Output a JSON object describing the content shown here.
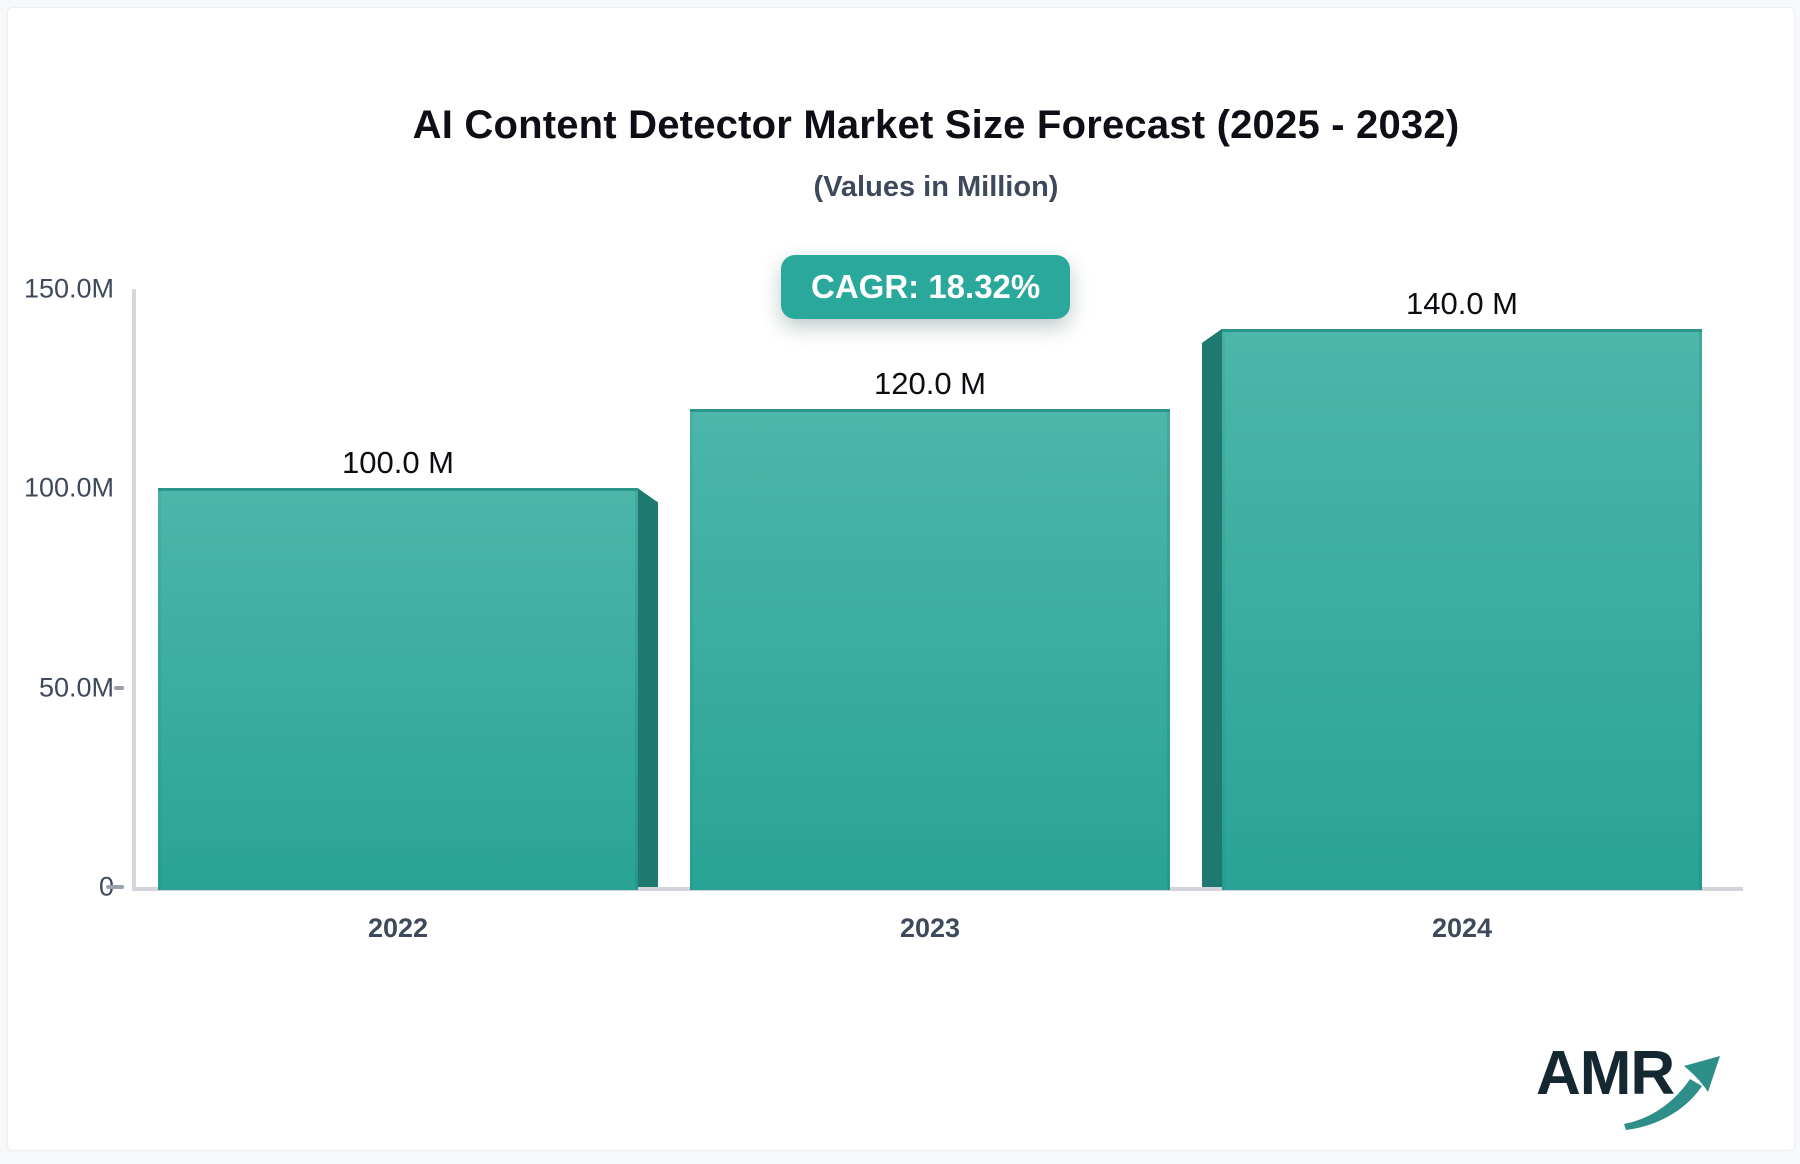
{
  "header": {
    "title": "AI Content Detector Market Size Forecast (2025 - 2032)",
    "subtitle": "(Values in Million)"
  },
  "badge": {
    "label": "CAGR: 18.32%",
    "color": "#2aa89c"
  },
  "chart_data": {
    "type": "bar",
    "title": "AI Content Detector Market Size Forecast (2025 - 2032)",
    "subtitle": "(Values in Million)",
    "categories": [
      "2022",
      "2023",
      "2024"
    ],
    "values": [
      100,
      120,
      140
    ],
    "bar_labels": [
      "100.0 M",
      "120.0 M",
      "140.0 M"
    ],
    "xlabel": "",
    "ylabel": "",
    "ylim": [
      0,
      150
    ],
    "y_ticks": [
      {
        "value": 150,
        "label": "150.0M"
      },
      {
        "value": 100,
        "label": "100.0M"
      },
      {
        "value": 50,
        "label": "50.0M"
      },
      {
        "value": 0,
        "label": "0"
      }
    ],
    "grid": false,
    "legend": "none",
    "annotations": [
      "CAGR: 18.32%"
    ],
    "colors": {
      "bar_gradient_top": "#4cb6ab",
      "bar_gradient_bottom": "#29a396",
      "bar_side_face": "#1e7a70",
      "bar_top_edge": "#2b958b",
      "axis_line": "#d5d7dd",
      "tick_text": "#3e4a5c",
      "value_text": "#0c0c12",
      "badge": "#2aa89c"
    }
  },
  "logo": {
    "text": "AMR",
    "arrow_color": "#2e8e89"
  }
}
